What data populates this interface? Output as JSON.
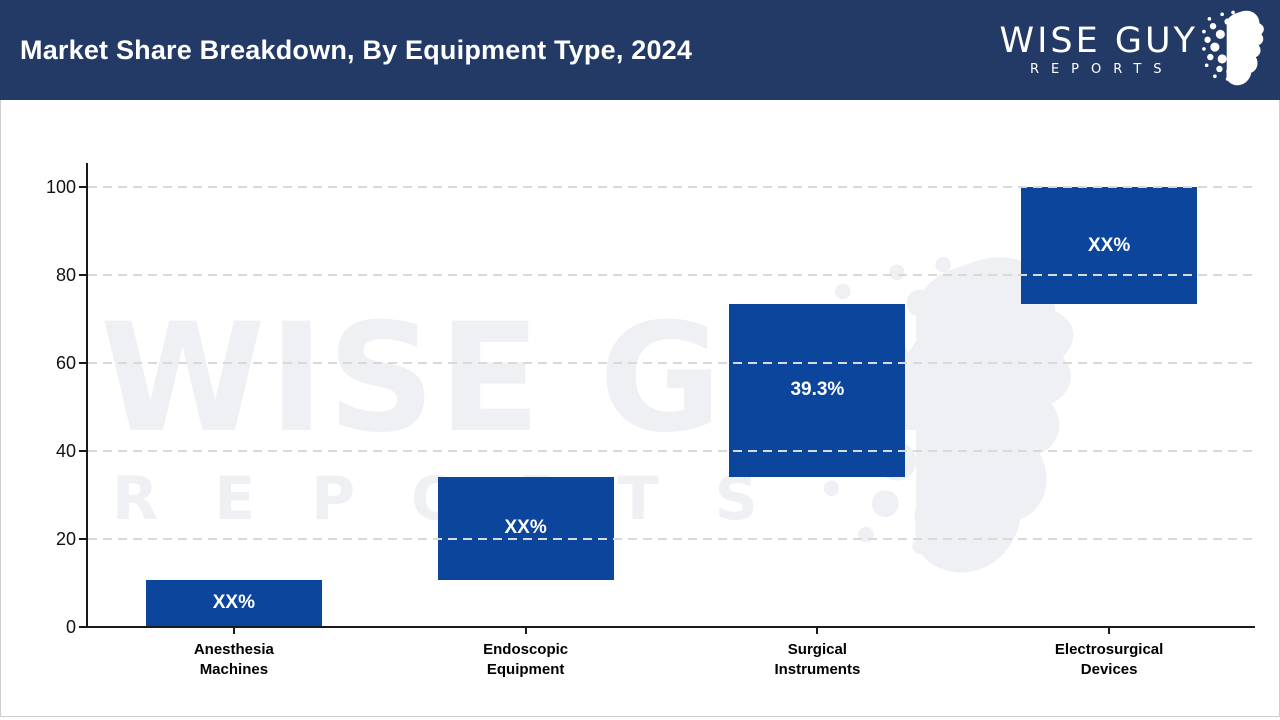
{
  "header": {
    "title": "Market Share Breakdown, By Equipment Type, 2024",
    "logo": {
      "line1": "WISE GUY",
      "line2": "REPORTS"
    }
  },
  "watermark": {
    "line1": "WISE GUY",
    "line2": "REPORTS"
  },
  "colors": {
    "header_bg": "#233a67",
    "bar": "#0c459c",
    "grid": "#d9d9d9",
    "axis": "#1a1a1a",
    "bar_label": "#ffffff",
    "watermark": "#eff0f3"
  },
  "chart_data": {
    "type": "bar",
    "subtype": "waterfall",
    "title": "Market Share Breakdown, By Equipment Type, 2024",
    "categories": [
      "Anesthesia Machines",
      "Endoscopic Equipment",
      "Surgical Instruments",
      "Electrosurgical Devices"
    ],
    "series": [
      {
        "name": "Market share (%)",
        "segments": [
          {
            "category": "Anesthesia Machines",
            "start": 0,
            "end": 10.7,
            "value_label": "XX%"
          },
          {
            "category": "Endoscopic Equipment",
            "start": 10.7,
            "end": 34.1,
            "value_label": "XX%"
          },
          {
            "category": "Surgical Instruments",
            "start": 34.1,
            "end": 73.4,
            "value_label": "39.3%"
          },
          {
            "category": "Electrosurgical Devices",
            "start": 73.4,
            "end": 100,
            "value_label": "XX%"
          }
        ]
      }
    ],
    "xlabel": "",
    "ylabel": "",
    "ylim": [
      0,
      105
    ],
    "yticks": [
      0,
      20,
      40,
      60,
      80,
      100
    ],
    "grid": "dashed-horizontal-over-bars",
    "legend": "none",
    "bar_color": "#0c459c",
    "bar_label_color": "#ffffff"
  }
}
